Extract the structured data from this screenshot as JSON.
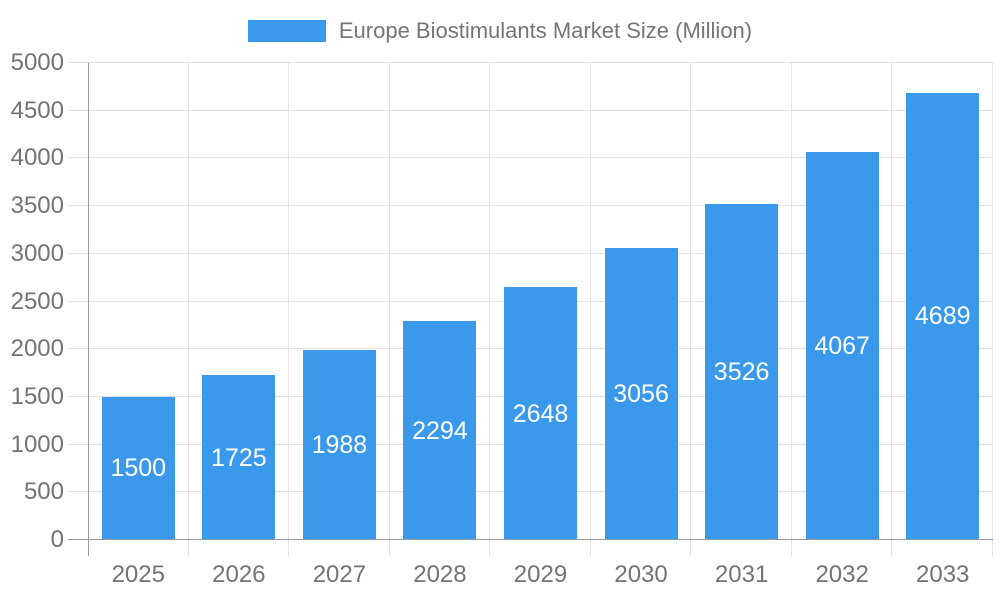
{
  "legend": {
    "label": "Europe Biostimulants Market Size (Million)"
  },
  "chart_data": {
    "type": "bar",
    "title": "Europe Biostimulants Market Size (Million)",
    "categories": [
      "2025",
      "2026",
      "2027",
      "2028",
      "2029",
      "2030",
      "2031",
      "2032",
      "2033"
    ],
    "values": [
      1500,
      1725,
      1988,
      2294,
      2648,
      3056,
      3526,
      4067,
      4689
    ],
    "xlabel": "",
    "ylabel": "",
    "ylim": [
      0,
      5000
    ],
    "yticks": [
      0,
      500,
      1000,
      1500,
      2000,
      2500,
      3000,
      3500,
      4000,
      4500,
      5000
    ],
    "grid": true,
    "legend_position": "top",
    "value_labels": "inside-center",
    "colors": {
      "bar": "#3b99ec",
      "value_label": "#ffffff",
      "grid": "#e3e3e3",
      "axis": "#9a9a9a",
      "tick_label": "#737373",
      "legend_text": "#757575",
      "background": "#ffffff"
    }
  }
}
